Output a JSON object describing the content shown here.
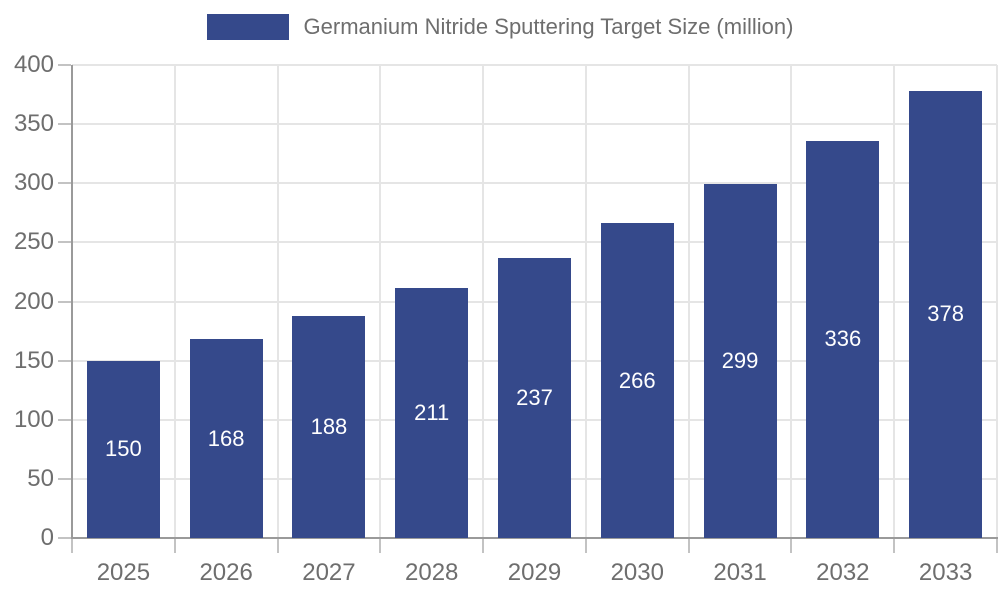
{
  "chart_data": {
    "type": "bar",
    "title": "Germanium Nitride Sputtering Target Size (million)",
    "categories": [
      "2025",
      "2026",
      "2027",
      "2028",
      "2029",
      "2030",
      "2031",
      "2032",
      "2033"
    ],
    "values": [
      150,
      168,
      188,
      211,
      237,
      266,
      299,
      336,
      378
    ],
    "xlabel": "",
    "ylabel": "",
    "ylim": [
      0,
      400
    ],
    "ytick_step": 50,
    "ytick_labels": [
      "0",
      "50",
      "100",
      "150",
      "200",
      "250",
      "300",
      "350",
      "400"
    ],
    "grid": true,
    "legend_position": "top-center",
    "value_label_position": "inside-center",
    "colors": {
      "bar": "#35498B",
      "grid": "#E5E5E5",
      "axis": "#9A9A9A",
      "tick": "#C3C3C3",
      "axis_text": "#6E6E6E",
      "value_text": "#FFFFFF",
      "background": "#FFFFFF"
    }
  }
}
